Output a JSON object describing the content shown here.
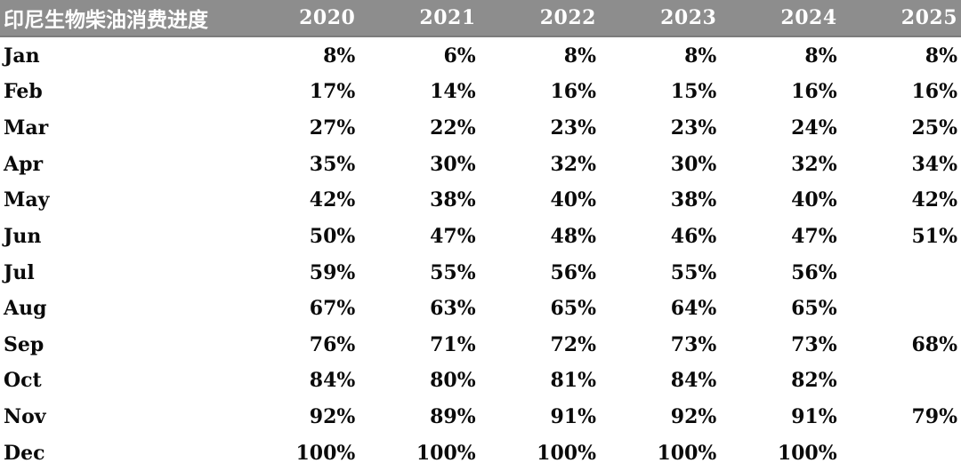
{
  "colors": {
    "header_bg": "#8d8d8d",
    "header_border": "#7c7c7c",
    "header_text": "#ffffff",
    "body_text": "#0a0a0a",
    "background": "#ffffff"
  },
  "chart_data": {
    "type": "table",
    "title": "印尼生物柴油消费进度",
    "unit": "percent of annual consumption completed",
    "columns": [
      "2020",
      "2021",
      "2022",
      "2023",
      "2024",
      "2025"
    ],
    "row_labels": [
      "Jan",
      "Feb",
      "Mar",
      "Apr",
      "May",
      "Jun",
      "Jul",
      "Aug",
      "Sep",
      "Oct",
      "Nov",
      "Dec"
    ],
    "rows": [
      {
        "label": "Jan",
        "values": [
          "8%",
          "6%",
          "8%",
          "8%",
          "8%",
          "8%"
        ]
      },
      {
        "label": "Feb",
        "values": [
          "17%",
          "14%",
          "16%",
          "15%",
          "16%",
          "16%"
        ]
      },
      {
        "label": "Mar",
        "values": [
          "27%",
          "22%",
          "23%",
          "23%",
          "24%",
          "25%"
        ]
      },
      {
        "label": "Apr",
        "values": [
          "35%",
          "30%",
          "32%",
          "30%",
          "32%",
          "34%"
        ]
      },
      {
        "label": "May",
        "values": [
          "42%",
          "38%",
          "40%",
          "38%",
          "40%",
          "42%"
        ]
      },
      {
        "label": "Jun",
        "values": [
          "50%",
          "47%",
          "48%",
          "46%",
          "47%",
          "51%"
        ]
      },
      {
        "label": "Jul",
        "values": [
          "59%",
          "55%",
          "56%",
          "55%",
          "56%",
          ""
        ]
      },
      {
        "label": "Aug",
        "values": [
          "67%",
          "63%",
          "65%",
          "64%",
          "65%",
          ""
        ]
      },
      {
        "label": "Sep",
        "values": [
          "76%",
          "71%",
          "72%",
          "73%",
          "73%",
          "68%"
        ]
      },
      {
        "label": "Oct",
        "values": [
          "84%",
          "80%",
          "81%",
          "84%",
          "82%",
          ""
        ]
      },
      {
        "label": "Nov",
        "values": [
          "92%",
          "89%",
          "91%",
          "92%",
          "91%",
          "79%"
        ]
      },
      {
        "label": "Dec",
        "values": [
          "100%",
          "100%",
          "100%",
          "100%",
          "100%",
          ""
        ]
      }
    ]
  }
}
